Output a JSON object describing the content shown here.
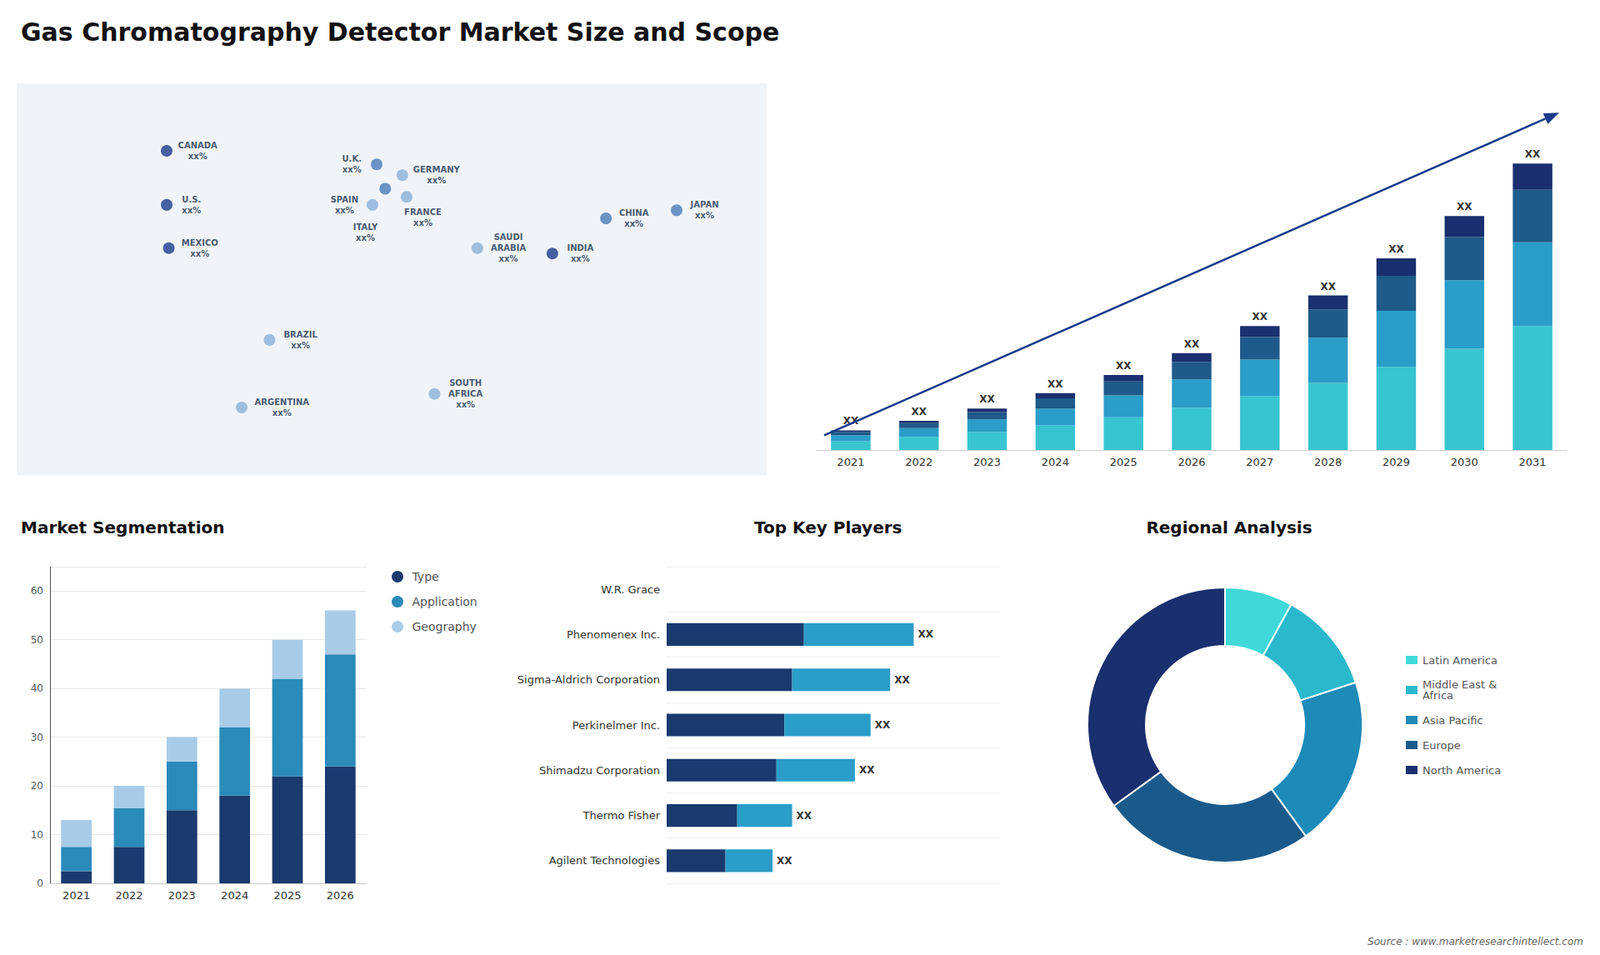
{
  "title": "Gas Chromatography Detector Market Size and Scope",
  "annotations": [
    {
      "text": "Source : www.marketresearchintellect.com"
    }
  ],
  "chart_data": [
    {
      "type": "map",
      "xlim": [
        -170,
        180
      ],
      "ylim": [
        -60,
        85
      ],
      "tick_labels": false,
      "grid": false,
      "annotations": [
        {
          "text": "CANADA\nxx%",
          "x": -100,
          "y": 60,
          "color": "#1a3a8a"
        },
        {
          "text": "U.S.\nxx%",
          "x": -100,
          "y": 40,
          "color": "#1a3a8a"
        },
        {
          "text": "MEXICO\nxx%",
          "x": -99,
          "y": 24,
          "color": "#1a3a8a"
        },
        {
          "text": "BRAZIL\nxx%",
          "x": -52,
          "y": -10,
          "color": "#8ab0d8"
        },
        {
          "text": "ARGENTINA\nxx%",
          "x": -65,
          "y": -35,
          "color": "#8ab0d8"
        },
        {
          "text": "U.K.\nxx%",
          "x": -2,
          "y": 55,
          "color": "#4a7ab8"
        },
        {
          "text": "FRANCE\nxx%",
          "x": 2,
          "y": 46,
          "color": "#4a7ab8"
        },
        {
          "text": "SPAIN\nxx%",
          "x": -4,
          "y": 40,
          "color": "#8ab0d8"
        },
        {
          "text": "GERMANY\nxx%",
          "x": 10,
          "y": 51,
          "color": "#8ab0d8"
        },
        {
          "text": "ITALY\nxx%",
          "x": 12,
          "y": 43,
          "color": "#8ab0d8"
        },
        {
          "text": "SAUDI\nARABIA\nxx%",
          "x": 45,
          "y": 24,
          "color": "#8ab0d8"
        },
        {
          "text": "SOUTH\nAFRICA\nxx%",
          "x": 25,
          "y": -30,
          "color": "#8ab0d8"
        },
        {
          "text": "CHINA\nxx%",
          "x": 105,
          "y": 35,
          "color": "#4a7ab8"
        },
        {
          "text": "INDIA\nxx%",
          "x": 80,
          "y": 22,
          "color": "#1a3a8a"
        },
        {
          "text": "JAPAN\nxx%",
          "x": 138,
          "y": 38,
          "color": "#4a7ab8"
        }
      ]
    },
    {
      "type": "bar",
      "stacked": true,
      "categories": [
        "2021",
        "2022",
        "2023",
        "2024",
        "2025",
        "2026",
        "2027",
        "2028",
        "2029",
        "2030",
        "2031"
      ],
      "series": [
        {
          "color": "#38c5d0",
          "values": [
            1.2,
            1.8,
            2.5,
            3.4,
            4.5,
            5.8,
            7.4,
            9.2,
            11.4,
            13.9,
            17.0
          ]
        },
        {
          "color": "#2a9dc8",
          "values": [
            0.8,
            1.2,
            1.7,
            2.3,
            3.0,
            3.9,
            5.0,
            6.2,
            7.7,
            9.4,
            11.5
          ]
        },
        {
          "color": "#1e5a8a",
          "values": [
            0.5,
            0.7,
            1.0,
            1.4,
            1.9,
            2.4,
            3.1,
            3.9,
            4.8,
            5.9,
            7.2
          ]
        },
        {
          "color": "#1a2f6e",
          "values": [
            0.2,
            0.3,
            0.5,
            0.7,
            0.9,
            1.2,
            1.5,
            1.9,
            2.4,
            2.9,
            3.6
          ],
          "value_labels": [
            "XX",
            "XX",
            "XX",
            "XX",
            "XX",
            "XX",
            "XX",
            "XX",
            "XX",
            "XX",
            "XX"
          ]
        }
      ],
      "ylim": [
        0,
        50.304
      ],
      "tick_labels": "x",
      "grid": false
    },
    {
      "type": "bar",
      "title": "Market Segmentation",
      "stacked": true,
      "categories": [
        "2021",
        "2022",
        "2023",
        "2024",
        "2025",
        "2026"
      ],
      "series": [
        {
          "name": "Type",
          "color": "#1a3a6e",
          "values": [
            2.5,
            7.5,
            15.0,
            18.0,
            22.0,
            24.0
          ]
        },
        {
          "name": "Application",
          "color": "#2a8ab8",
          "values": [
            5.0,
            8.0,
            10.0,
            14.0,
            20.0,
            23.0
          ]
        },
        {
          "name": "Geography",
          "color": "#a8cce8",
          "values": [
            5.5,
            4.5,
            5.0,
            8.0,
            8.0,
            9.0
          ]
        }
      ],
      "ylim": [
        0,
        65
      ],
      "yticks": [
        0,
        10,
        20,
        30,
        40,
        50,
        60
      ],
      "grid": true,
      "legend": "right"
    },
    {
      "type": "bar",
      "title": "Top Key Players",
      "orientation": "horizontal",
      "stacked": true,
      "categories": [
        "W.R. Grace",
        "Phenomenex Inc.",
        "Sigma-Aldrich Corporation",
        "Perkinelmer Inc.",
        "Shimadzu Corporation",
        "Thermo Fisher",
        "Agilent Technologies"
      ],
      "series": [
        {
          "color": "#1a3a6e",
          "values": [
            0,
            3.5,
            3.2,
            3.0,
            2.8,
            1.8,
            1.5
          ]
        },
        {
          "color": "#2a9dc8",
          "values": [
            0,
            2.8,
            2.5,
            2.2,
            2.0,
            1.4,
            1.2
          ],
          "value_labels": [
            null,
            "XX",
            "XX",
            "XX",
            "XX",
            "XX",
            "XX"
          ]
        }
      ],
      "xlim": [
        0,
        8.5
      ],
      "tick_labels": "y",
      "grid": true
    },
    {
      "type": "donut",
      "title": "Regional Analysis",
      "categories": [
        "Latin America",
        "Middle East &\nAfrica",
        "Asia Pacific",
        "Europe",
        "North America"
      ],
      "values": [
        8,
        12,
        20,
        25,
        35
      ],
      "colors": [
        "#40d8d8",
        "#2ab8cc",
        "#1e8ab8",
        "#1a5a8a",
        "#1a2f6e"
      ],
      "legend": "right"
    }
  ]
}
